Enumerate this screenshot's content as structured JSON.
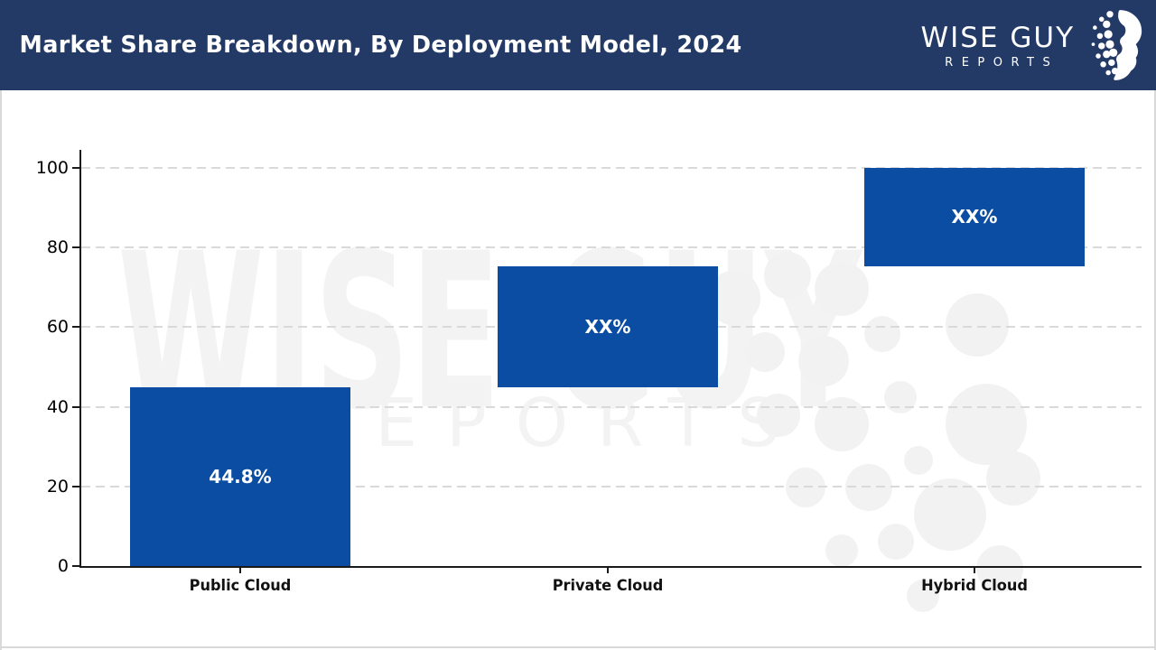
{
  "header": {
    "title": "Market Share Breakdown, By Deployment Model, 2024",
    "logo": {
      "name": "WISE GUY",
      "subtitle": "REPORTS"
    }
  },
  "watermark": {
    "line1": "WISE GUY",
    "line2": "REPORTS"
  },
  "chart_data": {
    "type": "bar",
    "variant": "floating-segment (waterfall) market share breakdown",
    "title": "Market Share Breakdown, By Deployment Model, 2024",
    "categories": [
      "Public Cloud",
      "Private Cloud",
      "Hybrid Cloud"
    ],
    "series": [
      {
        "name": "Market share segment (%)",
        "ranges": [
          [
            0,
            44.8
          ],
          [
            44.8,
            75.3
          ],
          [
            75.3,
            100
          ]
        ],
        "bar_labels": [
          "44.8%",
          "XX%",
          "XX%"
        ]
      }
    ],
    "xlabel": "",
    "ylabel": "",
    "ylim": [
      0,
      100
    ],
    "yticks": [
      0,
      20,
      40,
      60,
      80,
      100
    ],
    "grid": "horizontal-dashed",
    "legend": "none",
    "colors": {
      "bar": "#0b4da2",
      "bar_label": "#ffffff",
      "grid": "#d9d9d9",
      "axis": "#1a1a1a",
      "tick_label": "#111111"
    }
  },
  "colors": {
    "header_bg": "#233a66",
    "page_bg": "#ffffff",
    "watermark": "#f3f3f3"
  }
}
